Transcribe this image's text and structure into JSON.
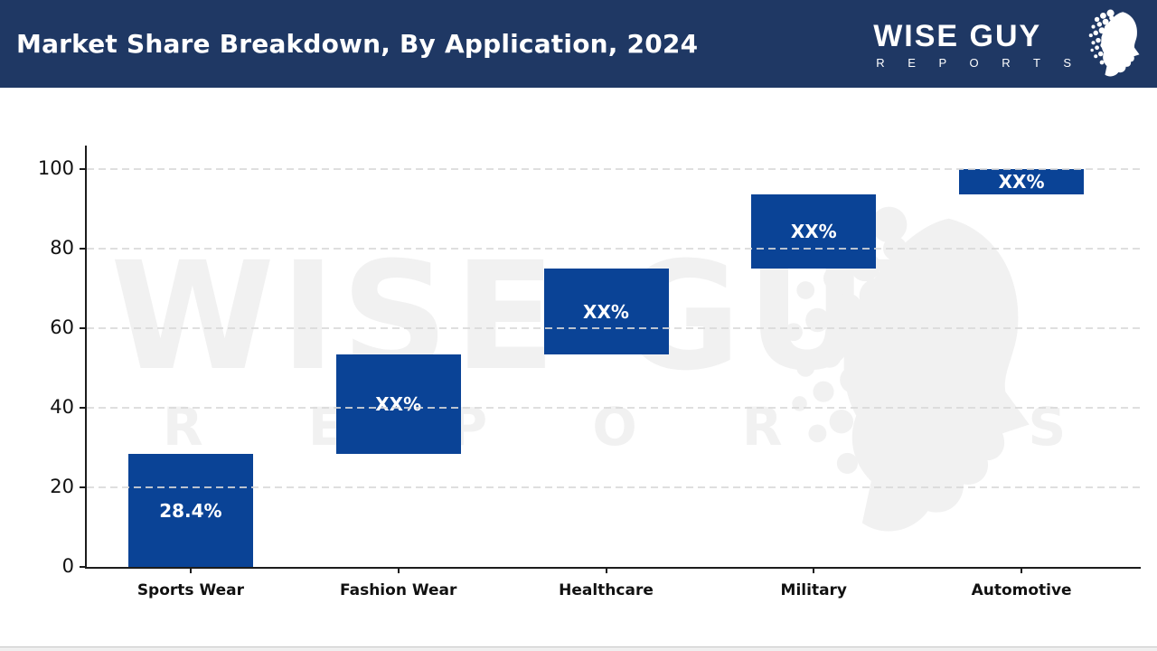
{
  "header": {
    "title": "Market Share Breakdown, By Application, 2024",
    "logo": {
      "line1": "WISE GUY",
      "line2": "R E P O R T S"
    }
  },
  "watermark": {
    "line1": "WISE GUY",
    "line2": "R E P O R T S"
  },
  "colors": {
    "header_bg": "#1f3864",
    "bar": "#0a4396",
    "bar_label": "#ffffff",
    "grid": "#d9d9d9",
    "axis": "#1c1c1c",
    "watermark": "#f1f1f1"
  },
  "chart_data": {
    "type": "bar",
    "subtype": "waterfall",
    "title": "Market Share Breakdown, By Application, 2024",
    "categories": [
      "Sports Wear",
      "Fashion Wear",
      "Healthcare",
      "Military",
      "Automotive"
    ],
    "segments": [
      {
        "category": "Sports Wear",
        "start": 0,
        "end": 28.4,
        "label": "28.4%"
      },
      {
        "category": "Fashion Wear",
        "start": 28.4,
        "end": 53.4,
        "label": "XX%"
      },
      {
        "category": "Healthcare",
        "start": 53.4,
        "end": 75,
        "label": "XX%"
      },
      {
        "category": "Military",
        "start": 75,
        "end": 93.6,
        "label": "XX%"
      },
      {
        "category": "Automotive",
        "start": 93.6,
        "end": 100,
        "label": "XX%"
      }
    ],
    "ylim": [
      0,
      100
    ],
    "yticks": [
      0,
      20,
      40,
      60,
      80,
      100
    ],
    "xlabel": "",
    "ylabel": "",
    "grid": "dashed-horizontal",
    "legend": false
  }
}
